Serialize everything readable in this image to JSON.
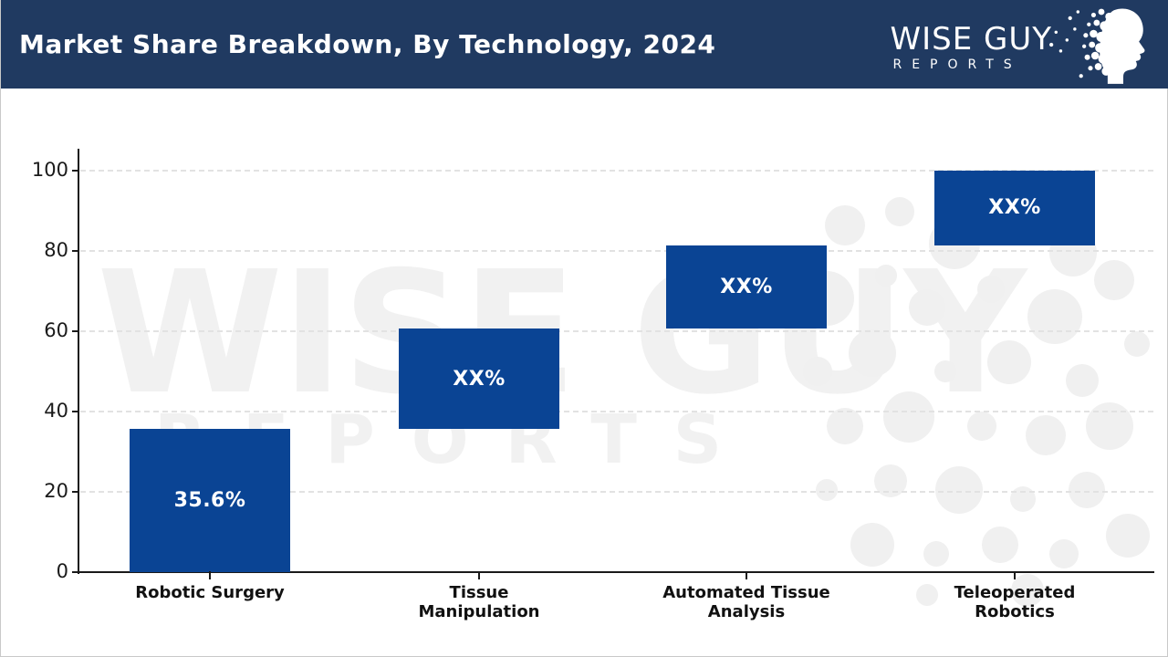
{
  "header": {
    "title": "Market Share Breakdown, By Technology, 2024",
    "brand": {
      "line1": "WISE GUY",
      "line2": "REPORTS"
    },
    "background": "#203a61"
  },
  "watermark": {
    "line1": "WISE GUY",
    "line2": "REPORTS"
  },
  "chart_data": {
    "type": "bar",
    "subtype": "floating-waterfall",
    "title": "Market Share Breakdown, By Technology, 2024",
    "categories": [
      "Robotic Surgery",
      "Tissue\nManipulation",
      "Automated Tissue\nAnalysis",
      "Teleoperated\nRobotics"
    ],
    "segments": [
      {
        "category": "Robotic Surgery",
        "start": 0,
        "end": 35.6,
        "label": "35.6%"
      },
      {
        "category": "Tissue Manipulation",
        "start": 35.6,
        "end": 60.6,
        "label": "XX%"
      },
      {
        "category": "Automated Tissue Analysis",
        "start": 60.6,
        "end": 81.4,
        "label": "XX%"
      },
      {
        "category": "Teleoperated Robotics",
        "start": 81.4,
        "end": 100,
        "label": "XX%"
      }
    ],
    "ylim": [
      0,
      100
    ],
    "yticks": [
      0,
      20,
      40,
      60,
      80,
      100
    ],
    "xlabel": "",
    "ylabel": "",
    "grid": "horizontal-dashed",
    "legend": "none",
    "bar_color": "#0a4494",
    "label_color": "#ffffff"
  }
}
